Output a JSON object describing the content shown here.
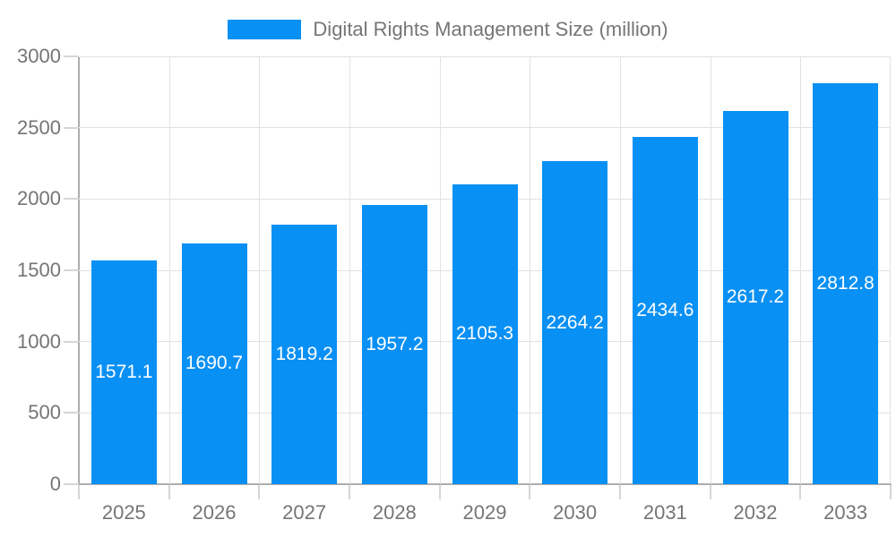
{
  "chart_data": {
    "type": "bar",
    "title": "Digital Rights Management Size (million)",
    "series_name": "Digital Rights Management Size (million)",
    "categories": [
      "2025",
      "2026",
      "2027",
      "2028",
      "2029",
      "2030",
      "2031",
      "2032",
      "2033"
    ],
    "values": [
      1571.1,
      1690.7,
      1819.2,
      1957.2,
      2105.3,
      2264.2,
      2434.6,
      2617.2,
      2812.8
    ],
    "value_labels": [
      "1571.1",
      "1690.7",
      "1819.2",
      "1957.2",
      "2105.3",
      "2264.2",
      "2434.6",
      "2617.2",
      "2812.8"
    ],
    "xlabel": "",
    "ylabel": "",
    "ylim": [
      0,
      3000
    ],
    "yticks": [
      0,
      500,
      1000,
      1500,
      2000,
      2500,
      3000
    ],
    "grid": true,
    "legend_position": "top-center",
    "bar_color": "#0990f4",
    "value_label_color": "#ffffff",
    "axis_text_color": "#757575",
    "gridline_color": "#e2e2e2",
    "axis_line_color": "#adadad"
  }
}
